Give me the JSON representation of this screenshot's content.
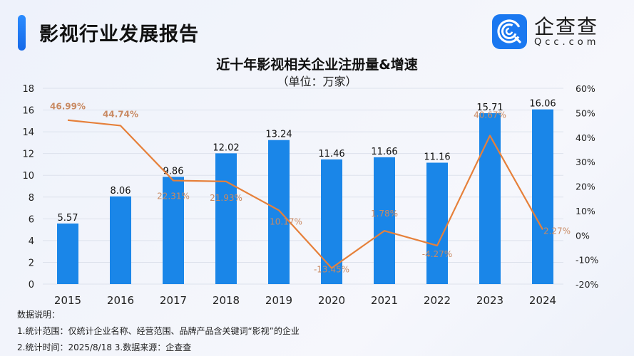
{
  "header": {
    "title": "影视行业发展报告",
    "logo_cn": "企查查",
    "logo_en": "Qcc.com"
  },
  "colors": {
    "bar": "#1a86e8",
    "line": "#e6803a",
    "line_label": "#c98a63",
    "accent": "#1a78f0"
  },
  "chart_data": {
    "type": "bar+line",
    "title": "近十年影视相关企业注册量&增速",
    "subtitle": "（单位：万家）",
    "categories": [
      "2015",
      "2016",
      "2017",
      "2018",
      "2019",
      "2020",
      "2021",
      "2022",
      "2023",
      "2024"
    ],
    "series": [
      {
        "name": "注册量(万家)",
        "type": "bar",
        "axis": "left",
        "values": [
          5.57,
          8.06,
          9.86,
          12.02,
          13.24,
          11.46,
          11.66,
          11.16,
          15.71,
          16.06
        ],
        "labels": [
          "5.57",
          "8.06",
          "9.86",
          "12.02",
          "13.24",
          "11.46",
          "11.66",
          "11.16",
          "15.71",
          "16.06"
        ]
      },
      {
        "name": "增速",
        "type": "line",
        "axis": "right",
        "values": [
          46.99,
          44.74,
          22.31,
          21.93,
          10.17,
          -13.45,
          1.78,
          -4.27,
          40.67,
          2.27
        ],
        "labels": [
          "46.99%",
          "44.74%",
          "22.31%",
          "21.93%",
          "10.17%",
          "-13.45%",
          "1.78%",
          "-4.27%",
          "40.67%",
          "2.27%"
        ]
      }
    ],
    "left_axis": {
      "ylim": [
        0,
        18
      ],
      "ticks": [
        "0",
        "2",
        "4",
        "6",
        "8",
        "10",
        "12",
        "14",
        "16",
        "18"
      ]
    },
    "right_axis": {
      "ylim": [
        -20,
        60
      ],
      "ticks": [
        "-20%",
        "-10%",
        "0%",
        "10%",
        "20%",
        "30%",
        "40%",
        "50%",
        "60%"
      ]
    },
    "grid": true,
    "legend": "none"
  },
  "notes": {
    "heading": "数据说明：",
    "line1": "1.统计范围：仅统计企业名称、经营范围、品牌产品含关键词“影视”的企业",
    "line2": " 2.统计时间：2025/8/18  3.数据来源：企查查"
  }
}
